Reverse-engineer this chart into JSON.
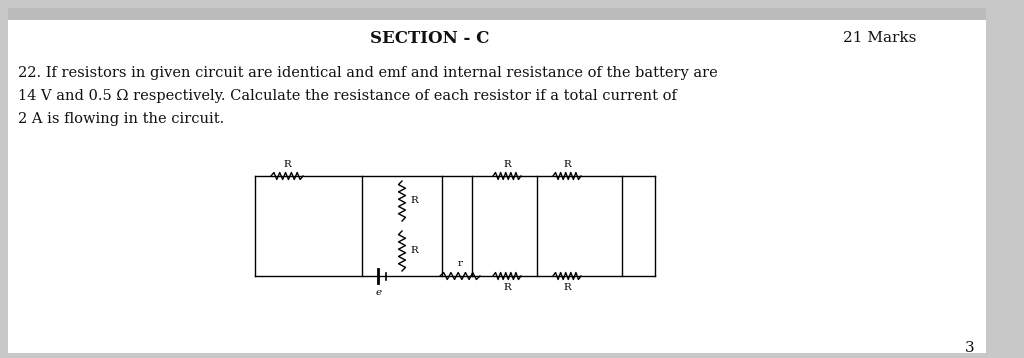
{
  "section_title": "SECTION - C",
  "marks_text": "21 Marks",
  "question_text_line1": "22. If resistors in given circuit are identical and emf and internal resistance of the battery are",
  "question_text_line2": "14 V and 0.5 Ω respectively. Calculate the resistance of each resistor if a total current of",
  "question_text_line3": "2 A is flowing in the circuit.",
  "page_number": "3",
  "title_fontsize": 12,
  "body_fontsize": 10.5,
  "text_color": "#111111",
  "bg_color": "#c8c8c8",
  "page_color": "#ffffff"
}
